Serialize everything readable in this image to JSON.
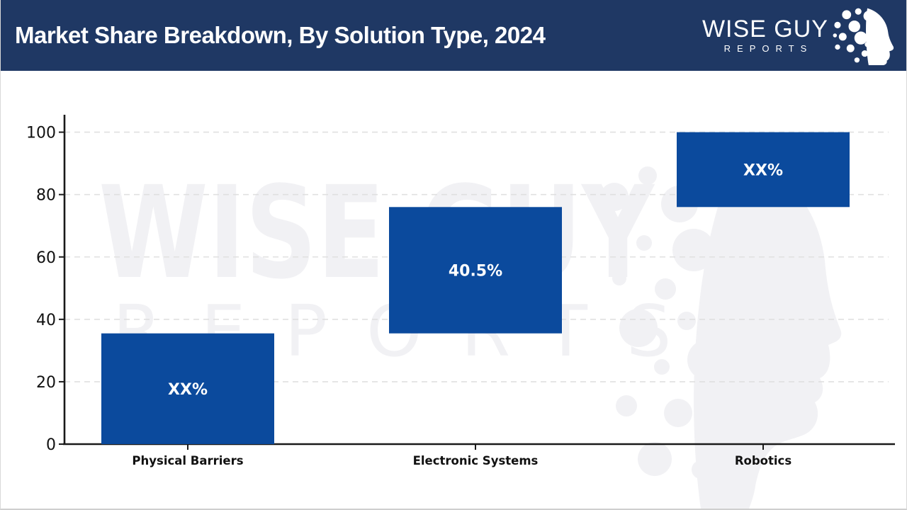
{
  "header": {
    "title": "Market Share Breakdown, By Solution Type, 2024",
    "logo": {
      "primary": "WISE GUY",
      "secondary": "REPORTS"
    }
  },
  "watermark": {
    "primary": "WISE GUY",
    "secondary": "REPORTS"
  },
  "chart_data": {
    "type": "bar",
    "subtype": "floating-column",
    "title": "Market Share Breakdown, By Solution Type, 2024",
    "categories": [
      "Physical Barriers",
      "Electronic Systems",
      "Robotics"
    ],
    "series": [
      {
        "name": "Market Share (%)",
        "segments": [
          {
            "category": "Physical Barriers",
            "start": 0,
            "end": 35.5,
            "label": "XX%"
          },
          {
            "category": "Electronic Systems",
            "start": 35.5,
            "end": 76,
            "label": "40.5%"
          },
          {
            "category": "Robotics",
            "start": 76,
            "end": 100,
            "label": "XX%"
          }
        ]
      }
    ],
    "xlabel": "",
    "ylabel": "",
    "ylim": [
      0,
      100
    ],
    "yticks": [
      0,
      20,
      40,
      60,
      80,
      100
    ],
    "grid": {
      "horizontal": true,
      "style": "dashed"
    },
    "legend": "none",
    "colors": {
      "bar": "#0b4a9d",
      "bar_label": "#ffffff",
      "axis": "#1a1a1a",
      "tick_label": "#111111",
      "grid": "#e0e0e0",
      "header_bg": "#1f3864",
      "header_text": "#ffffff",
      "watermark": "#f1f1f4"
    }
  }
}
